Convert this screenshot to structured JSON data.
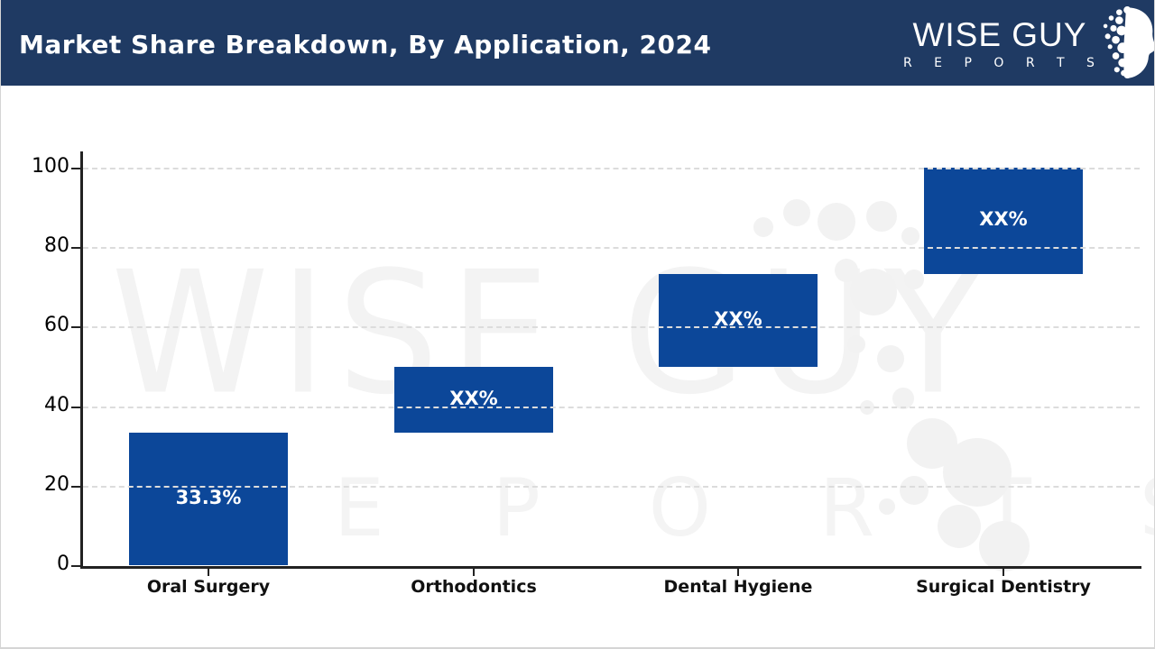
{
  "header": {
    "title": "Market Share Breakdown, By Application, 2024",
    "logo": {
      "line1": "WISE GUY",
      "line2": "R E P O R T S"
    }
  },
  "watermark": {
    "line1": "WISE GUY",
    "line2": "R E P O R T S"
  },
  "chart_data": {
    "type": "bar",
    "subtype": "waterfall",
    "title": "Market Share Breakdown, By Application, 2024",
    "categories": [
      "Oral Surgery",
      "Orthodontics",
      "Dental Hygiene",
      "Surgical Dentistry"
    ],
    "bars": [
      {
        "category": "Oral Surgery",
        "start": 0,
        "end": 33.3,
        "label": "33.3%"
      },
      {
        "category": "Orthodontics",
        "start": 33.3,
        "end": 50,
        "label": "XX%"
      },
      {
        "category": "Dental Hygiene",
        "start": 50,
        "end": 73.3,
        "label": "XX%"
      },
      {
        "category": "Surgical Dentistry",
        "start": 73.3,
        "end": 100,
        "label": "XX%"
      }
    ],
    "xlabel": "",
    "ylabel": "",
    "ylim": [
      0,
      104
    ],
    "yticks": [
      0,
      20,
      40,
      60,
      80,
      100
    ],
    "grid": "horizontal-dashed",
    "legend": "none",
    "colors": {
      "bar": "#0C4799",
      "header_bg": "#1F3A63",
      "gridline": "#DCDCDC",
      "axis": "#222222",
      "bar_label_text": "#FFFFFF",
      "watermark": "#F3F3F3"
    }
  }
}
